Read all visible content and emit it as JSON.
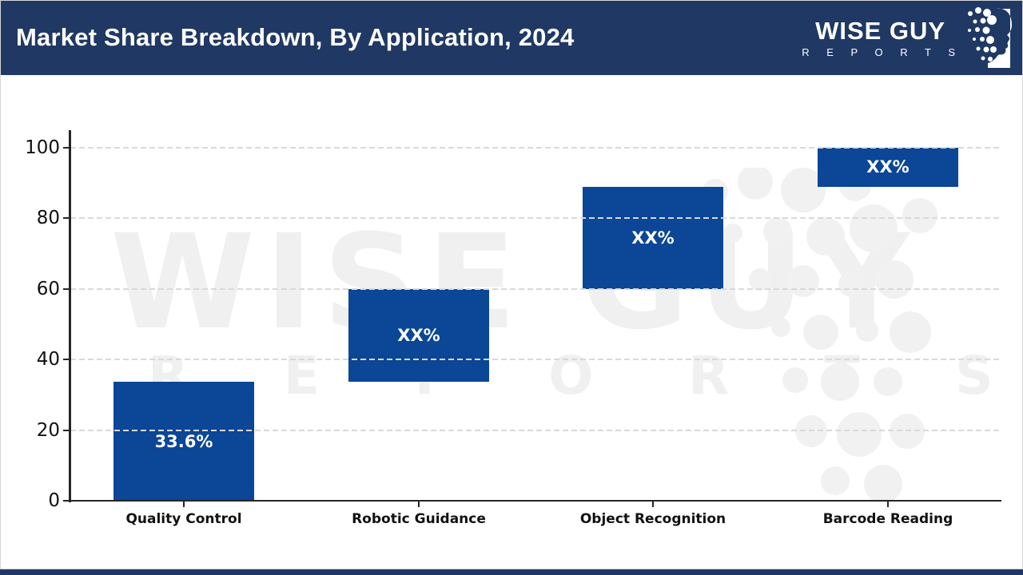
{
  "header": {
    "title": "Market Share Breakdown, By Application, 2024",
    "bg_color": "#203864",
    "logo": {
      "line1": "WISE GUY",
      "line2": "R E P O R T S"
    }
  },
  "watermark": {
    "line1": "WISE GUY",
    "line2": "R E P O R T S"
  },
  "chart_data": {
    "type": "bar",
    "subtype": "waterfall",
    "title": "Market Share Breakdown, By Application, 2024",
    "categories": [
      "Quality Control",
      "Robotic Guidance",
      "Object Recognition",
      "Barcode Reading"
    ],
    "segments": [
      {
        "category": "Quality Control",
        "start": 0,
        "end": 33.6,
        "label": "33.6%"
      },
      {
        "category": "Robotic Guidance",
        "start": 33.6,
        "end": 60,
        "label": "XX%"
      },
      {
        "category": "Object Recognition",
        "start": 60,
        "end": 89,
        "label": "XX%"
      },
      {
        "category": "Barcode Reading",
        "start": 89,
        "end": 100,
        "label": "XX%"
      }
    ],
    "y_ticks": [
      0,
      20,
      40,
      60,
      80,
      100
    ],
    "ylim": [
      0,
      105
    ],
    "grid": true,
    "legend": false,
    "bar_color": "#0b4697",
    "bar_label_color": "#ffffff",
    "gridline_color": "#d9d9d9",
    "axis_color": "#262626"
  }
}
